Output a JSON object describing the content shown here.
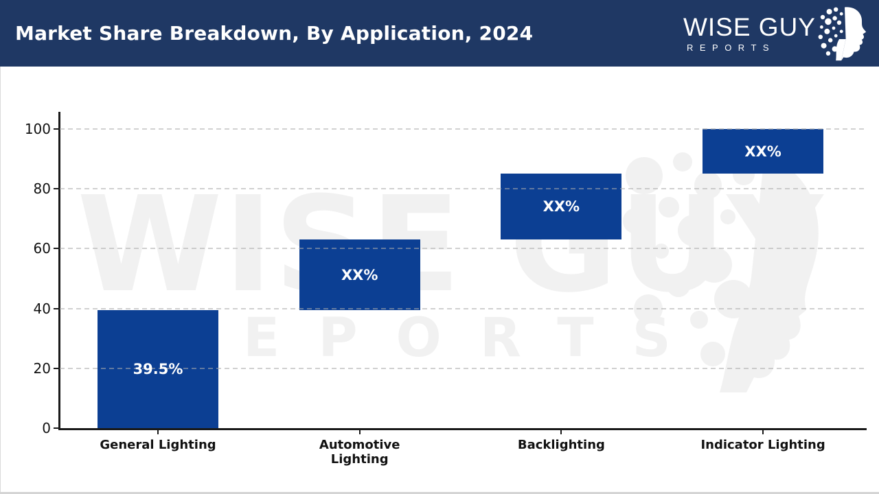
{
  "header": {
    "title": "Market Share Breakdown, By Application, 2024",
    "logo_line1": "WISE GUY",
    "logo_line2": "REPORTS"
  },
  "watermark": {
    "line1": "WISE GUY",
    "line2": "REPORTS"
  },
  "colors": {
    "header_bg": "#1f3864",
    "bar": "#0c3f93",
    "axis": "#1a1a1a",
    "gridline": "#d9d9d9",
    "bar_label": "#ffffff",
    "watermark": "#f1f1f1"
  },
  "chart_data": {
    "type": "bar",
    "variant": "floating-cumulative",
    "title": "Market Share Breakdown, By Application, 2024",
    "categories": [
      "General Lighting",
      "Automotive Lighting",
      "Backlighting",
      "Indicator Lighting"
    ],
    "tick_labels": [
      "General Lighting",
      "Automotive\nLighting",
      "Backlighting",
      "Indicator Lighting"
    ],
    "segments": [
      {
        "category": "General Lighting",
        "start": 0,
        "end": 39.5,
        "label": "39.5%"
      },
      {
        "category": "Automotive Lighting",
        "start": 39.5,
        "end": 63,
        "label": "XX%"
      },
      {
        "category": "Backlighting",
        "start": 63,
        "end": 85,
        "label": "XX%"
      },
      {
        "category": "Indicator Lighting",
        "start": 85,
        "end": 100,
        "label": "XX%"
      }
    ],
    "xlabel": "",
    "ylabel": "",
    "yticks": [
      0,
      20,
      40,
      60,
      80,
      100
    ],
    "ylim": [
      0,
      105
    ],
    "grid": "horizontal-dashed",
    "legend": "none"
  }
}
